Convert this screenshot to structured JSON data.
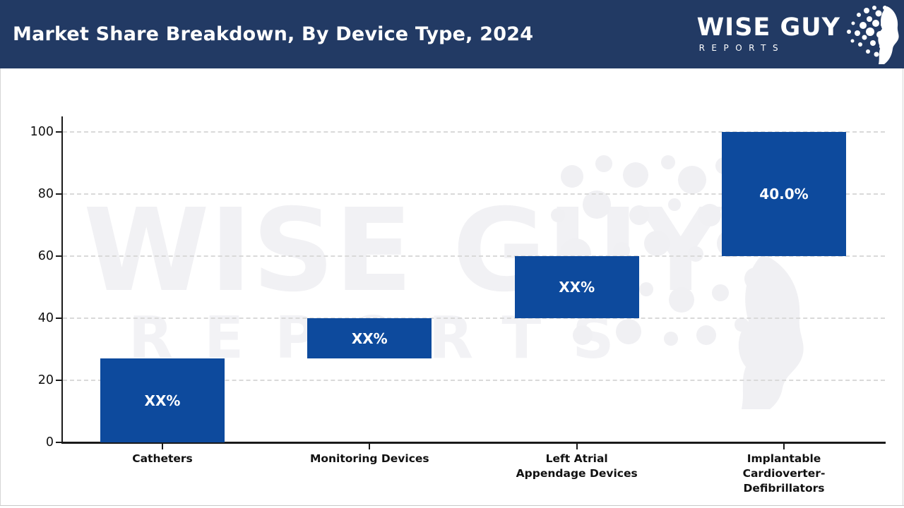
{
  "header": {
    "title": "Market Share Breakdown, By Device Type, 2024",
    "bg_color": "#223a64",
    "logo": {
      "name": "WISE GUY",
      "subname": "REPORTS",
      "face_icon": "dotted-head-profile"
    }
  },
  "watermark": {
    "line1": "WISE GUY",
    "line2": "REPORTS"
  },
  "chart_data": {
    "type": "bar",
    "subtype": "waterfall",
    "title": "Market Share Breakdown, By Device Type, 2024",
    "categories": [
      "Catheters",
      "Monitoring Devices",
      "Left Atrial\nAppendage Devices",
      "Implantable\nCardioverter-\nDefibrillators"
    ],
    "series": [
      {
        "name": "Market Share (%)",
        "segments": [
          {
            "category": "Catheters",
            "start": 0,
            "end": 27,
            "value": 27,
            "label": "XX%"
          },
          {
            "category": "Monitoring Devices",
            "start": 27,
            "end": 40,
            "value": 13,
            "label": "XX%"
          },
          {
            "category": "Left Atrial Appendage Devices",
            "start": 40,
            "end": 60,
            "value": 20,
            "label": "XX%"
          },
          {
            "category": "Implantable Cardioverter-Defibrillators",
            "start": 60,
            "end": 100,
            "value": 40,
            "label": "40.0%"
          }
        ]
      }
    ],
    "xlabel": "",
    "ylabel": "",
    "ylim": [
      0,
      100
    ],
    "yticks": [
      0,
      20,
      40,
      60,
      80,
      100
    ],
    "grid": "horizontal-dashed",
    "legend": "none",
    "bar_color": "#0d4a9d",
    "bar_label_color": "#ffffff",
    "axis_color": "#1a1a1a",
    "gridline_color": "#d9d9d9"
  }
}
